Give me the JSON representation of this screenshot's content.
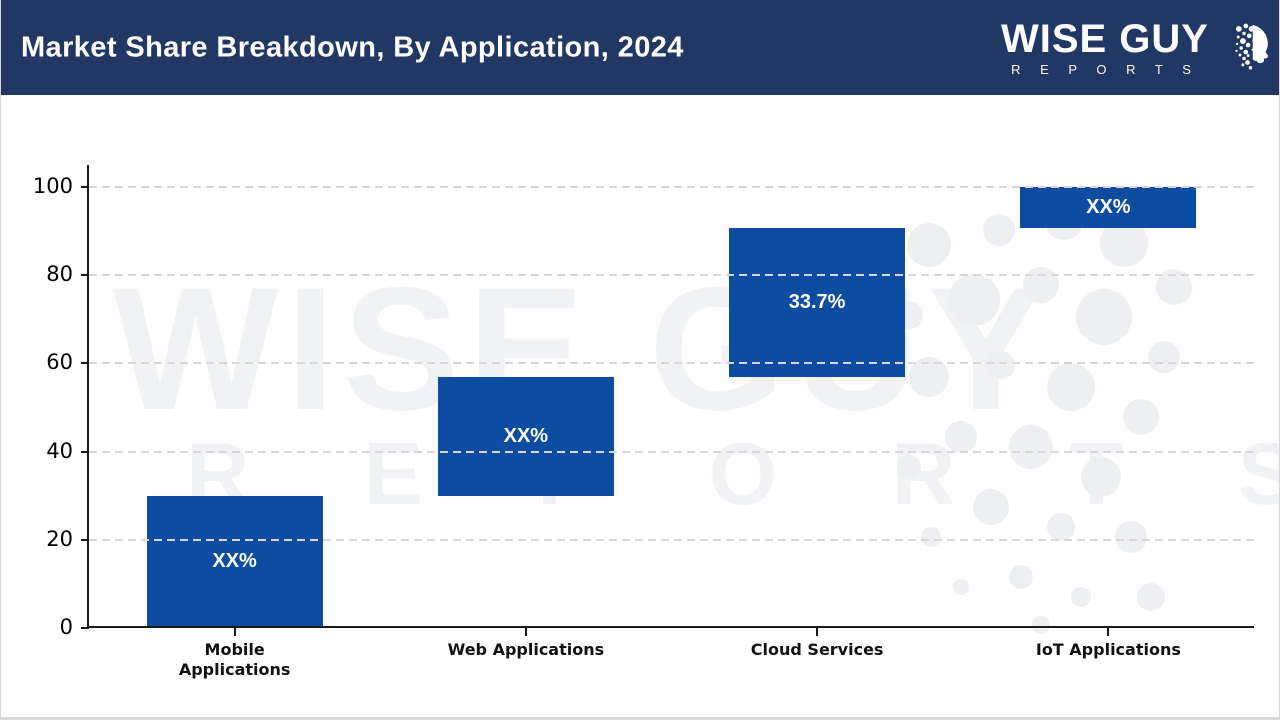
{
  "header": {
    "title": "Market Share Breakdown, By Application, 2024",
    "logo": {
      "line1": "WISE GUY",
      "line2": "R E P O R T S"
    }
  },
  "watermark": {
    "line1": "WISE GUY",
    "line2": "R E P O R T S"
  },
  "colors": {
    "header_bg": "#213764",
    "bar": "#0C4DA2",
    "axis": "#1a1a1a",
    "gridline": "#d7d7d7",
    "bar_label": "#ffffff",
    "watermark": "#f1f2f6"
  },
  "chart_data": {
    "type": "bar",
    "subtype": "floating-waterfall-segments",
    "title": "Market Share Breakdown, By Application, 2024",
    "categories": [
      "Mobile\nApplications",
      "Web Applications",
      "Cloud Services",
      "IoT Applications"
    ],
    "segments": [
      {
        "category": "Mobile Applications",
        "start": 0,
        "end": 30,
        "label": "XX%"
      },
      {
        "category": "Web Applications",
        "start": 30,
        "end": 57,
        "label": "XX%"
      },
      {
        "category": "Cloud Services",
        "start": 57,
        "end": 90.7,
        "label": "33.7%"
      },
      {
        "category": "IoT Applications",
        "start": 90.7,
        "end": 100,
        "label": "XX%"
      }
    ],
    "xlabel": "",
    "ylabel": "",
    "ylim": [
      0,
      100
    ],
    "yticks": [
      0,
      20,
      40,
      60,
      80,
      100
    ],
    "grid": "horizontal dashed, drawn over bars",
    "legend": "none",
    "bar_width_pct": 15.1
  }
}
